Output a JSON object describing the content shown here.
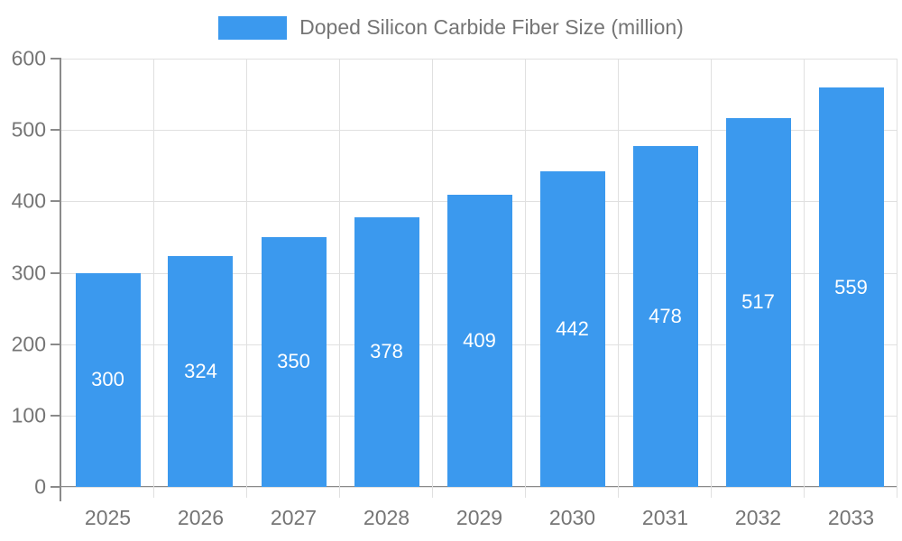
{
  "chart_data": {
    "type": "bar",
    "title": "Doped Silicon Carbide Fiber Size (million)",
    "series": [
      {
        "name": "Doped Silicon Carbide Fiber Size (million)",
        "values": [
          300,
          324,
          350,
          378,
          409,
          442,
          478,
          517,
          559
        ]
      }
    ],
    "categories": [
      "2025",
      "2026",
      "2027",
      "2028",
      "2029",
      "2030",
      "2031",
      "2032",
      "2033"
    ],
    "values": [
      300,
      324,
      350,
      378,
      409,
      442,
      478,
      517,
      559
    ],
    "xlabel": "",
    "ylabel": "",
    "ylim": [
      0,
      600
    ],
    "yticks": [
      0,
      100,
      200,
      300,
      400,
      500,
      600
    ],
    "grid": true,
    "legend_position": "top-center",
    "value_labels_shown": true,
    "colors": {
      "bar": "#3B99EE",
      "axis_text": "#757575",
      "gridline": "#E0E0E0",
      "axis_line": "#8A8A8A",
      "value_label": "#FFFFFF",
      "background": "#FFFFFF"
    }
  }
}
